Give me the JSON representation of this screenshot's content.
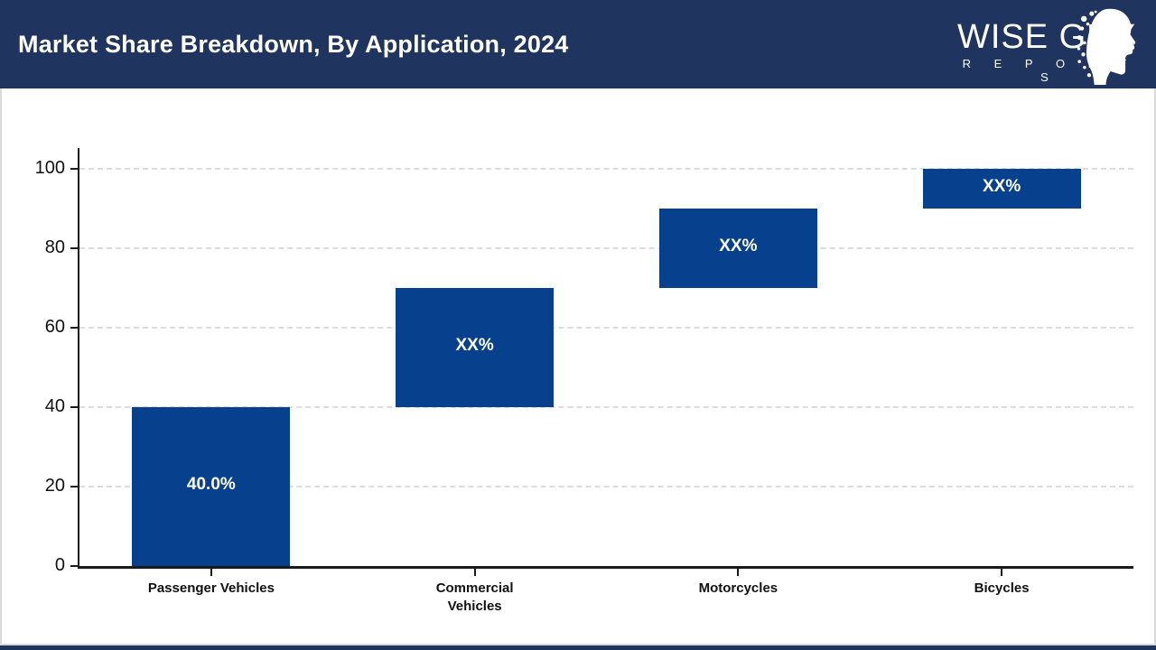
{
  "header": {
    "title": "Market Share Breakdown, By Application, 2024",
    "logo": {
      "wise_guy": "WISE GUY",
      "reports": "R E P O R T S"
    }
  },
  "watermark": {
    "wise_guy": "WISE GUY",
    "reports": "R E P O R T S"
  },
  "colors": {
    "header_bg": "#1f345f",
    "bar_blue": "#07418e",
    "axis": "#1a1a1a",
    "grid": "#dcdcdc",
    "bar_label": "#ffffff",
    "watermark": "#f2f2f2"
  },
  "chart_data": {
    "type": "bar",
    "subtype": "floating-waterfall",
    "title": "Market Share Breakdown, By Application, 2024",
    "categories": [
      "Passenger Vehicles",
      "Commercial\nVehicles",
      "Motorcycles",
      "Bicycles"
    ],
    "bars": [
      {
        "category": "Passenger Vehicles",
        "start": 0,
        "end": 40,
        "value": 40,
        "label": "40.0%"
      },
      {
        "category": "Commercial Vehicles",
        "start": 40,
        "end": 70,
        "value": 30,
        "label": "XX%"
      },
      {
        "category": "Motorcycles",
        "start": 70,
        "end": 90,
        "value": 20,
        "label": "XX%"
      },
      {
        "category": "Bicycles",
        "start": 90,
        "end": 100,
        "value": 10,
        "label": "XX%"
      }
    ],
    "y_ticks": [
      0,
      20,
      40,
      60,
      80,
      100
    ],
    "ylim": [
      0,
      104.3
    ],
    "xlabel": "",
    "ylabel": "",
    "grid": true,
    "grid_style": "dashed",
    "legend": false,
    "bar_color": "#07418e",
    "value_label_color": "#ffffff"
  }
}
